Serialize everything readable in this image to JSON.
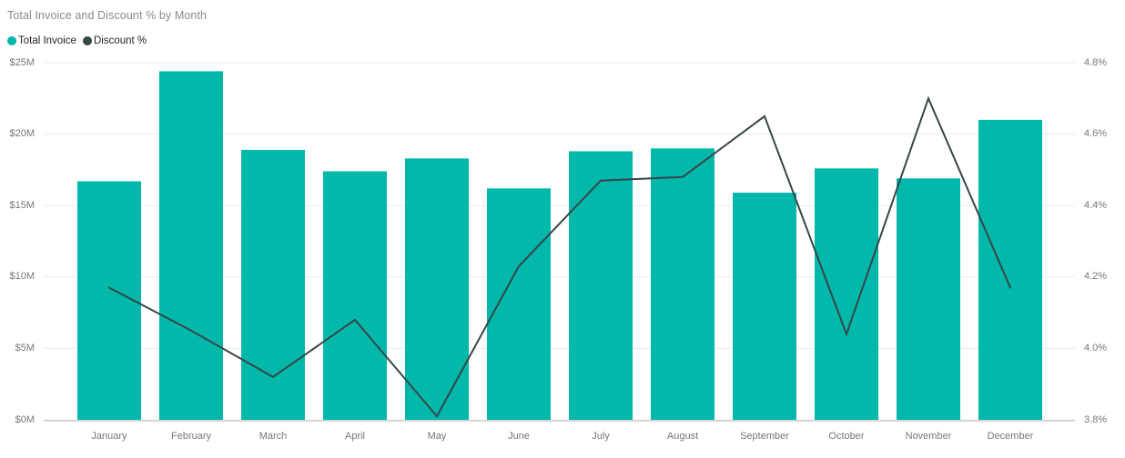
{
  "title": "Total Invoice and Discount % by Month",
  "legend": {
    "items": [
      {
        "label": "Total Invoice",
        "color": "#01B8AA"
      },
      {
        "label": "Discount %",
        "color": "#374649"
      }
    ]
  },
  "chart_data": {
    "type": "combo-bar-line",
    "title": "Total Invoice and Discount % by Month",
    "categories": [
      "January",
      "February",
      "March",
      "April",
      "May",
      "June",
      "July",
      "August",
      "September",
      "October",
      "November",
      "December"
    ],
    "series": [
      {
        "name": "Total Invoice",
        "type": "bar",
        "axis": "left",
        "unit": "$M",
        "color": "#01B8AA",
        "values": [
          16.7,
          24.4,
          18.9,
          17.4,
          18.3,
          16.2,
          18.8,
          19.0,
          15.9,
          17.6,
          16.9,
          21.0
        ]
      },
      {
        "name": "Discount %",
        "type": "line",
        "axis": "right",
        "unit": "%",
        "color": "#374649",
        "values": [
          4.17,
          4.05,
          3.92,
          4.08,
          3.81,
          4.23,
          4.47,
          4.48,
          4.65,
          4.04,
          4.7,
          4.17
        ]
      }
    ],
    "left_axis": {
      "min": 0,
      "max": 25,
      "step": 5,
      "tick_labels": [
        "$0M",
        "$5M",
        "$10M",
        "$15M",
        "$20M",
        "$25M"
      ]
    },
    "right_axis": {
      "min": 3.8,
      "max": 4.8,
      "step": 0.2,
      "tick_labels": [
        "3.8%",
        "4.0%",
        "4.2%",
        "4.4%",
        "4.6%",
        "4.8%"
      ]
    },
    "grid": true,
    "legend_position": "top-left"
  },
  "colors": {
    "bar": "#01B8AA",
    "line": "#374649",
    "grid": "#ececec",
    "axis_line": "#d8d6d6",
    "tick_text": "#777777",
    "title_text": "#8a8a8a",
    "legend_text": "#252423",
    "background": "#ffffff"
  }
}
